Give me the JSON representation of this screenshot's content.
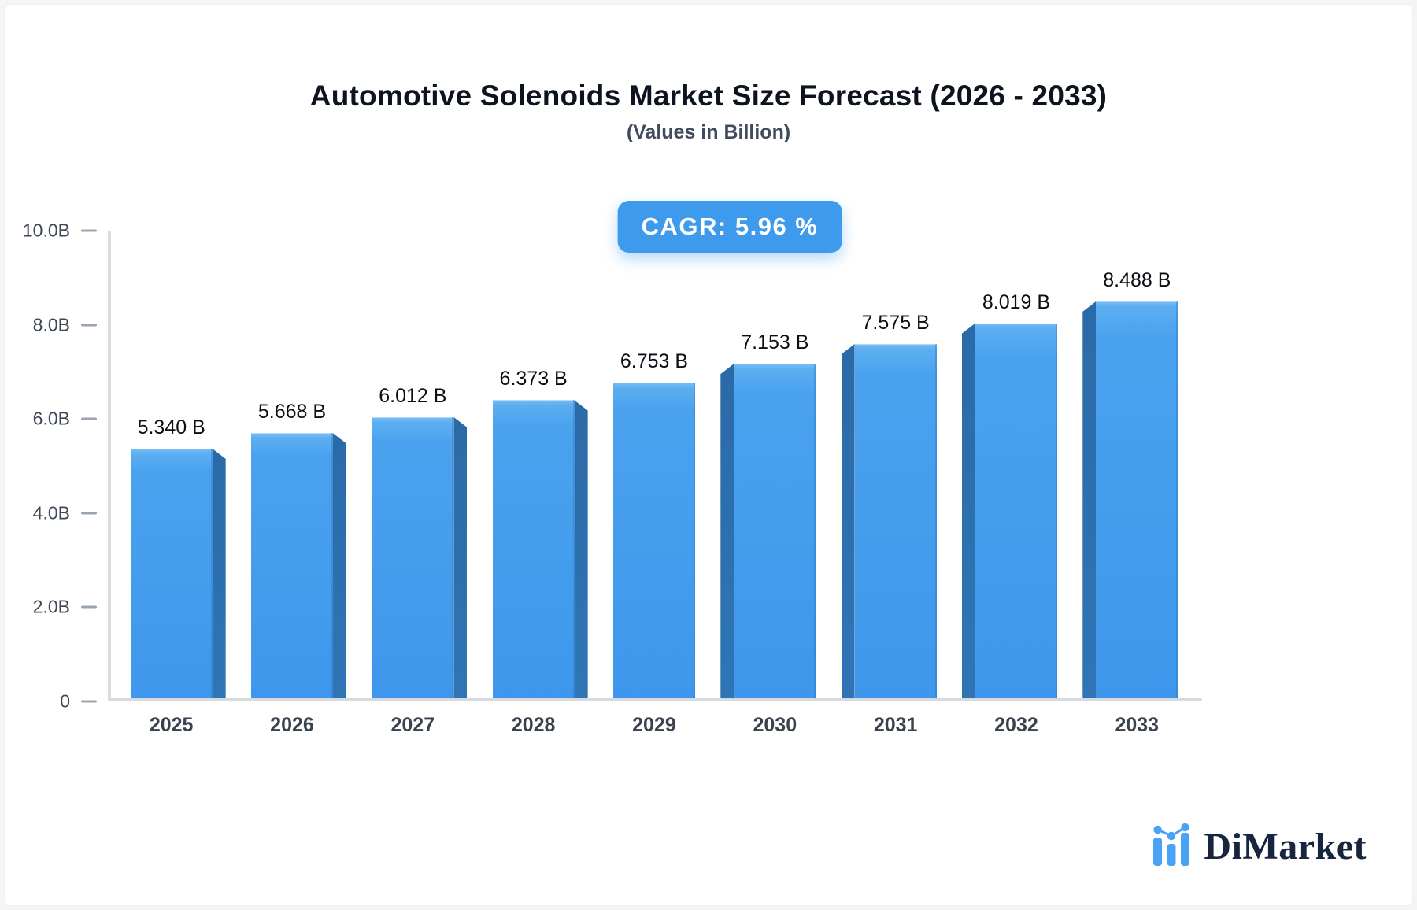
{
  "title": "Automotive Solenoids Market Size Forecast (2026 - 2033)",
  "subtitle": "(Values in Billion)",
  "cagr_badge": "CAGR: 5.96 %",
  "logo": {
    "name": "DiMarket"
  },
  "colors": {
    "accent_blue": "#3d9aec",
    "bar_face_top": "#5caef1",
    "bar_face_bottom": "#3e97ec",
    "bar_side_dark": "#2e72b0",
    "axis_line": "#d9dce1",
    "tick_dash": "#9ba4af",
    "y_label": "#3e4754",
    "year_label": "#39424f",
    "value_label": "#0b0e13",
    "logo_text": "#17253e",
    "logo_icon": "#4aa2f4",
    "background": "#ffffff"
  },
  "chart_data": {
    "type": "bar",
    "title": "Automotive Solenoids Market Size Forecast (2026 - 2033)",
    "subtitle": "(Values in Billion)",
    "categories": [
      "2025",
      "2026",
      "2027",
      "2028",
      "2029",
      "2030",
      "2031",
      "2032",
      "2033"
    ],
    "values": [
      5.34,
      5.668,
      6.012,
      6.373,
      6.753,
      7.153,
      7.575,
      8.019,
      8.488
    ],
    "value_labels": [
      "5.340 B",
      "5.668 B",
      "6.012 B",
      "6.373 B",
      "6.753 B",
      "7.153 B",
      "7.575 B",
      "8.019 B",
      "8.488 B"
    ],
    "xlabel": "",
    "ylabel": "",
    "ylim": [
      0,
      10
    ],
    "yticks": [
      {
        "value": 10,
        "label": "10.0B"
      },
      {
        "value": 8,
        "label": "8.0B"
      },
      {
        "value": 6,
        "label": "6.0B"
      },
      {
        "value": 4,
        "label": "4.0B"
      },
      {
        "value": 2,
        "label": "2.0B"
      },
      {
        "value": 0,
        "label": "0"
      }
    ],
    "grid": false,
    "legend": false,
    "bar_style": "3d-perspective (bars left of center beveled right, right of center beveled left)",
    "annotation": "CAGR: 5.96 %"
  }
}
